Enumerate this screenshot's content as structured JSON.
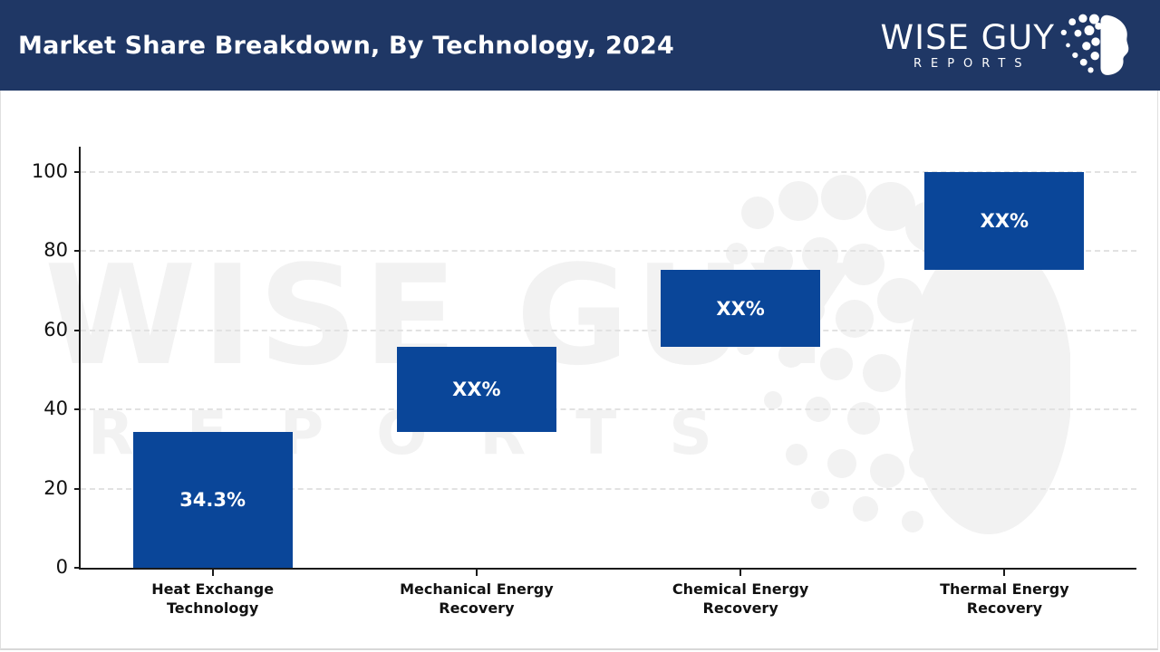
{
  "header": {
    "title": "Market Share Breakdown, By Technology, 2024",
    "logo": {
      "wordmark": "WISE GUY",
      "subtext": "REPORTS"
    }
  },
  "watermark": {
    "wordmark": "WISE GUY",
    "subtext": "REPORTS"
  },
  "chart_data": {
    "type": "bar",
    "subtype": "waterfall",
    "title": "Market Share Breakdown, By Technology, 2024",
    "categories": [
      [
        "Heat Exchange",
        "Technology"
      ],
      [
        "Mechanical Energy",
        "Recovery"
      ],
      [
        "Chemical Energy",
        "Recovery"
      ],
      [
        "Thermal Energy",
        "Recovery"
      ]
    ],
    "segments": [
      {
        "start": 0,
        "end": 34.3,
        "label": "34.3%"
      },
      {
        "start": 34.3,
        "end": 55.9,
        "label": "XX%"
      },
      {
        "start": 55.9,
        "end": 75.2,
        "label": "XX%"
      },
      {
        "start": 75.2,
        "end": 100,
        "label": "XX%"
      }
    ],
    "ylim": [
      0,
      100
    ],
    "yticks": [
      0,
      20,
      40,
      60,
      80,
      100
    ],
    "ytick_labels": [
      "0",
      "20",
      "40",
      "60",
      "80",
      "100"
    ],
    "grid": "horizontal-dashed",
    "legend": "none",
    "colors": {
      "bar": "#0a4699",
      "bar_label": "#ffffff",
      "axis": "#1a1a1a",
      "gridline": "#e2e2e2",
      "header_bg": "#1f3765",
      "watermark": "#f2f2f2"
    }
  }
}
